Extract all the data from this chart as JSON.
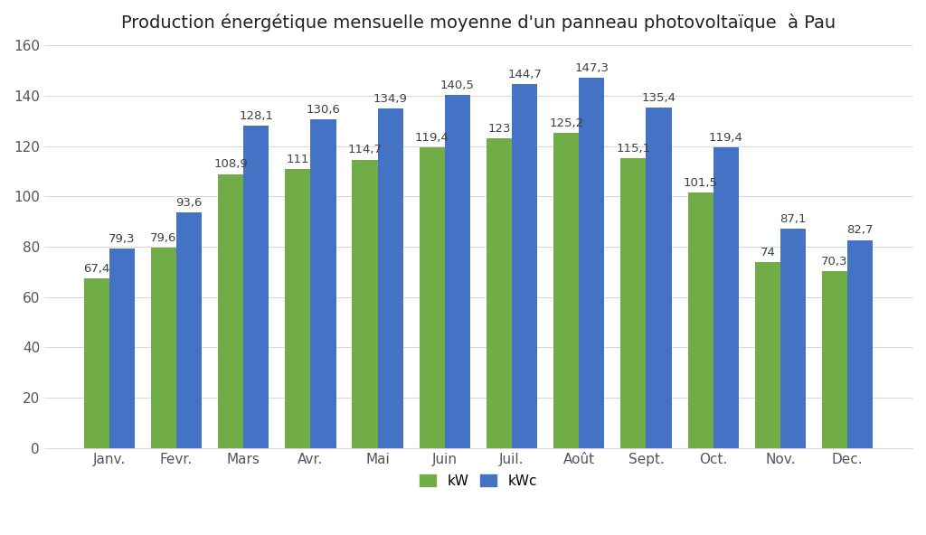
{
  "title": "Production énergétique mensuelle moyenne d'un panneau photovoltaïque  à Pau",
  "categories": [
    "Janv.",
    "Fevr.",
    "Mars",
    "Avr.",
    "Mai",
    "Juin",
    "Juil.",
    "Août",
    "Sept.",
    "Oct.",
    "Nov.",
    "Dec."
  ],
  "kw_values": [
    67.4,
    79.6,
    108.9,
    111,
    114.7,
    119.4,
    123,
    125.2,
    115.1,
    101.5,
    74,
    70.3
  ],
  "kwc_values": [
    79.3,
    93.6,
    128.1,
    130.6,
    134.9,
    140.5,
    144.7,
    147.3,
    135.4,
    119.4,
    87.1,
    82.7
  ],
  "kw_color": "#70ad47",
  "kwc_color": "#4472c4",
  "bar_width": 0.38,
  "ylim": [
    0,
    160
  ],
  "yticks": [
    0,
    20,
    40,
    60,
    80,
    100,
    120,
    140,
    160
  ],
  "legend_labels": [
    "kW",
    "kWc"
  ],
  "title_fontsize": 14,
  "tick_fontsize": 11,
  "label_fontsize": 9.5,
  "background_color": "#ffffff",
  "grid_color": "#d9d9d9"
}
